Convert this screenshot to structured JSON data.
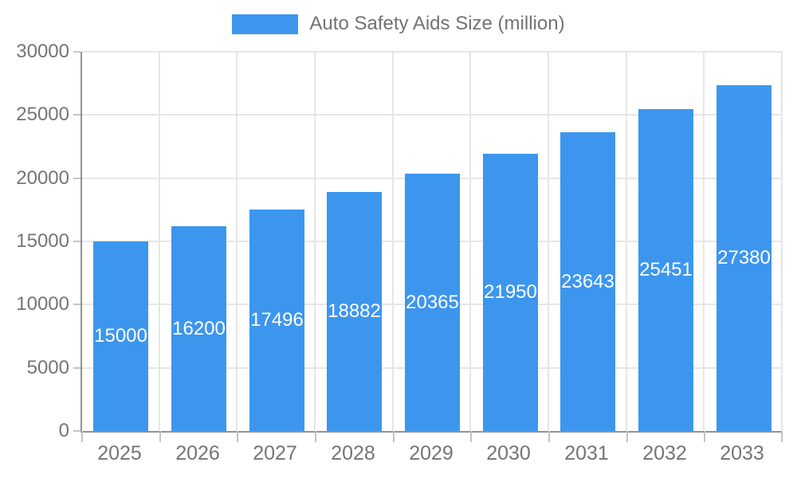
{
  "chart_data": {
    "type": "bar",
    "title": "Auto Safety Aids Size (million)",
    "categories": [
      "2025",
      "2026",
      "2027",
      "2028",
      "2029",
      "2030",
      "2031",
      "2032",
      "2033"
    ],
    "series": [
      {
        "name": "Auto Safety Aids Size (million)",
        "values": [
          15000,
          16200,
          17496,
          18882,
          20365,
          21950,
          23643,
          25451,
          27380
        ]
      }
    ],
    "xlabel": "",
    "ylabel": "",
    "ylim": [
      0,
      30000
    ],
    "yticks": [
      0,
      5000,
      10000,
      15000,
      20000,
      25000,
      30000
    ],
    "grid": true,
    "legend_position": "top",
    "bar_color": "#3d96ee",
    "bar_label_color": "#ffffff",
    "axis_color": "#929292",
    "grid_color": "#e6e6e6",
    "tick_color": "#c4c4c4",
    "text_color": "#757575"
  }
}
